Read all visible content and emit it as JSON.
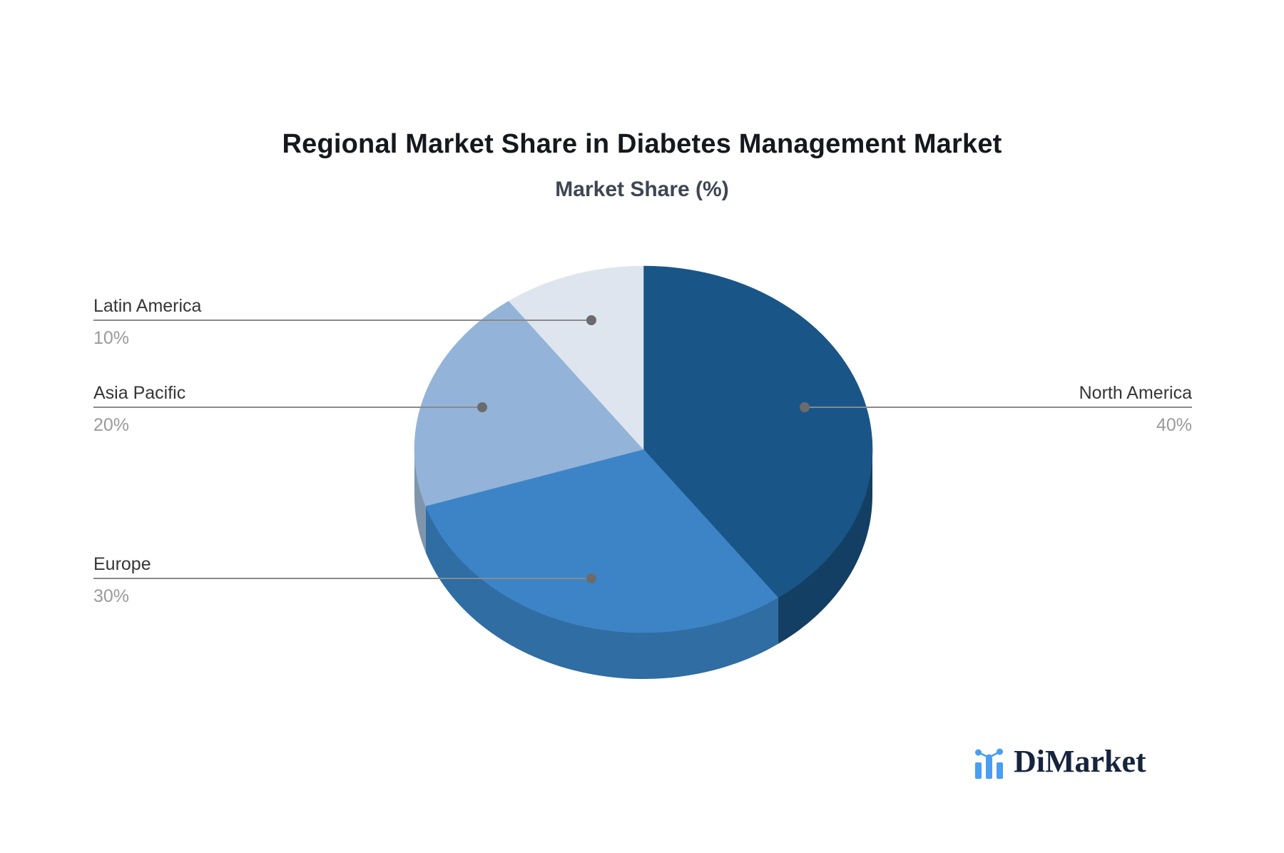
{
  "header": {
    "title": "Regional Market Share in Diabetes Management Market",
    "subtitle": "Market Share (%)"
  },
  "chart_data": {
    "type": "pie",
    "style": "3d",
    "title": "Regional Market Share in Diabetes Management Market",
    "subtitle": "Market Share (%)",
    "unit": "%",
    "direction": "clockwise",
    "start_angle_deg": 0,
    "legend": "none",
    "slices": [
      {
        "label": "North America",
        "value": 40,
        "display_value": "40%",
        "color": "#1a5588",
        "rim_color": "#123f63",
        "label_side": "right"
      },
      {
        "label": "Europe",
        "value": 30,
        "display_value": "30%",
        "color": "#3c84c6",
        "rim_color": "#2f6da3",
        "label_side": "left"
      },
      {
        "label": "Asia Pacific",
        "value": 20,
        "display_value": "20%",
        "color": "#94b3d8",
        "rim_color": "#7e95ac",
        "label_side": "left"
      },
      {
        "label": "Latin America",
        "value": 10,
        "display_value": "10%",
        "color": "#dee5ef",
        "label_side": "left"
      }
    ],
    "label_style": {
      "name_color": "#363636",
      "value_color": "#9a9a9a",
      "line_color": "#8a8a8a",
      "dot_color": "#6b6b6b"
    }
  },
  "brand": {
    "name": "DiMarket"
  }
}
